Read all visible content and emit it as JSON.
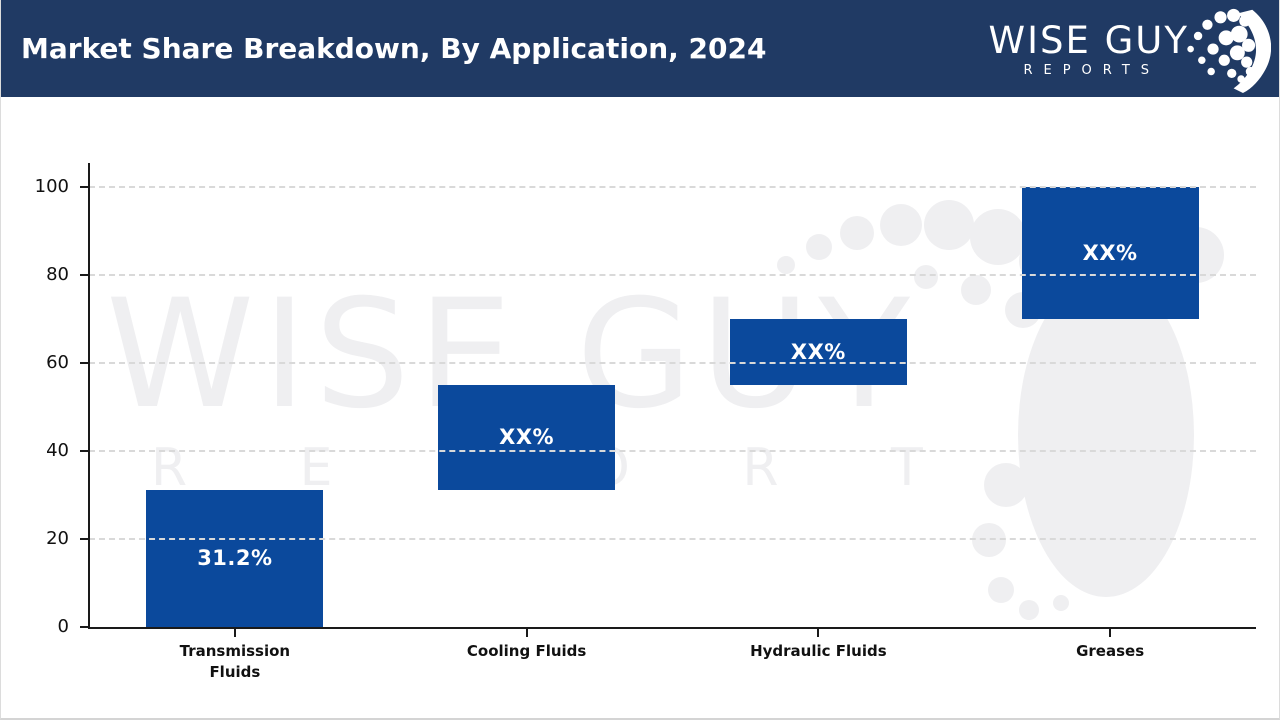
{
  "header": {
    "title": "Market Share Breakdown, By Application, 2024",
    "bg_color": "#203a64",
    "logo": {
      "wordmark": "WISE GUY",
      "subtitle": "REPORTS",
      "icon": "dotted-head-profile-icon"
    }
  },
  "watermark": {
    "line1": "WISE GUY",
    "line2": "R E P O R T S",
    "icon": "dotted-head-profile-watermark",
    "color": "#efeff1"
  },
  "chart_data": {
    "type": "bar",
    "subtype": "waterfall",
    "title": "Market Share Breakdown, By Application, 2024",
    "categories": [
      "Transmission Fluids",
      "Cooling Fluids",
      "Hydraulic Fluids",
      "Greases"
    ],
    "category_lines": [
      [
        "Transmission",
        "Fluids"
      ],
      [
        "Cooling Fluids"
      ],
      [
        "Hydraulic Fluids"
      ],
      [
        "Greases"
      ]
    ],
    "segments": [
      {
        "category": "Transmission Fluids",
        "start": 0,
        "end": 31.2,
        "label": "31.2%"
      },
      {
        "category": "Cooling Fluids",
        "start": 31.2,
        "end": 55,
        "label": "XX%"
      },
      {
        "category": "Hydraulic Fluids",
        "start": 55,
        "end": 70,
        "label": "XX%"
      },
      {
        "category": "Greases",
        "start": 70,
        "end": 100,
        "label": "XX%"
      }
    ],
    "xlabel": "",
    "ylabel": "",
    "ylim": [
      0,
      100
    ],
    "yticks": [
      0,
      20,
      40,
      60,
      80,
      100
    ],
    "grid": "horizontal-dashed",
    "legend": "none",
    "bar_color": "#0b499c",
    "bar_label_color": "#ffffff"
  }
}
